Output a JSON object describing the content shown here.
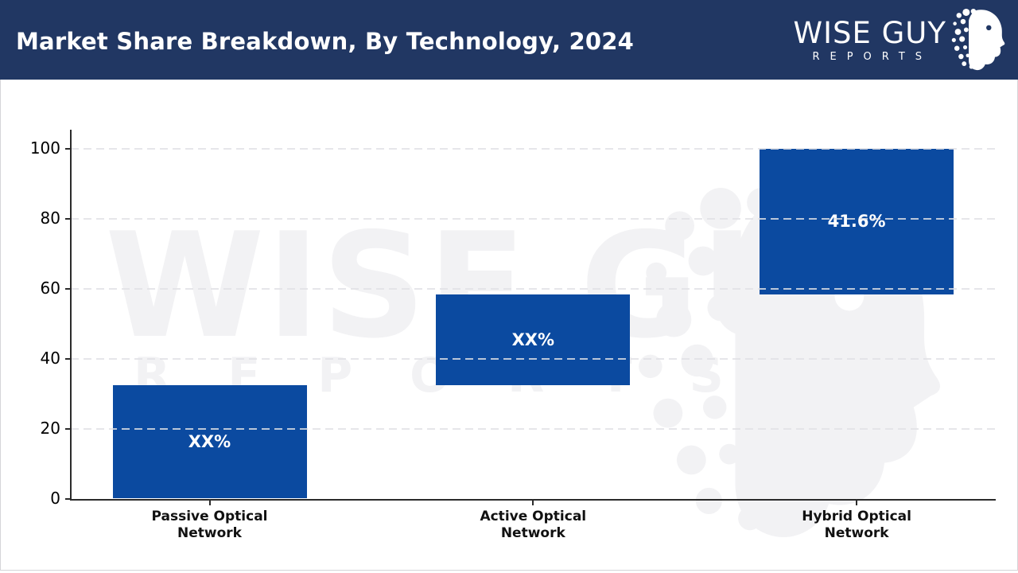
{
  "header": {
    "title": "Market Share Breakdown, By Technology, 2024",
    "logo": {
      "line1": "WISE GUY",
      "line2": "REPORTS"
    }
  },
  "watermark": {
    "line1": "WISE GUY",
    "line2": "REPORTS"
  },
  "colors": {
    "header_bg": "#213763",
    "bar_fill": "#0b4aa0",
    "bar_label": "#ffffff",
    "axis": "#2b2b2b",
    "grid": "#e1e1e5",
    "watermark": "#f2f2f4",
    "title_text": "#ffffff",
    "tick_text": "#000000",
    "frame_border": "#d5d5d8",
    "cat_text": "#111111"
  },
  "chart_data": {
    "type": "bar",
    "subtype": "floating-waterfall-percentage",
    "title": "Market Share Breakdown, By Technology, 2024",
    "categories": [
      "Passive Optical Network",
      "Active Optical Network",
      "Hybrid Optical Network"
    ],
    "category_label_lines": [
      [
        "Passive Optical",
        "Network"
      ],
      [
        "Active Optical",
        "Network"
      ],
      [
        "Hybrid Optical",
        "Network"
      ]
    ],
    "bars": [
      {
        "category": "Passive Optical Network",
        "start": 0,
        "end": 32.4,
        "value_label": "XX%",
        "value_est": 32.4
      },
      {
        "category": "Active Optical Network",
        "start": 32.4,
        "end": 58.4,
        "value_label": "XX%",
        "value_est": 26.0
      },
      {
        "category": "Hybrid Optical Network",
        "start": 58.4,
        "end": 100,
        "value_label": "41.6%",
        "value_est": 41.6
      }
    ],
    "yticks": [
      0,
      20,
      40,
      60,
      80,
      100
    ],
    "ylim": [
      0,
      107
    ],
    "xlabel": "",
    "ylabel": "",
    "grid": "horizontal-dashed",
    "legend": null
  }
}
